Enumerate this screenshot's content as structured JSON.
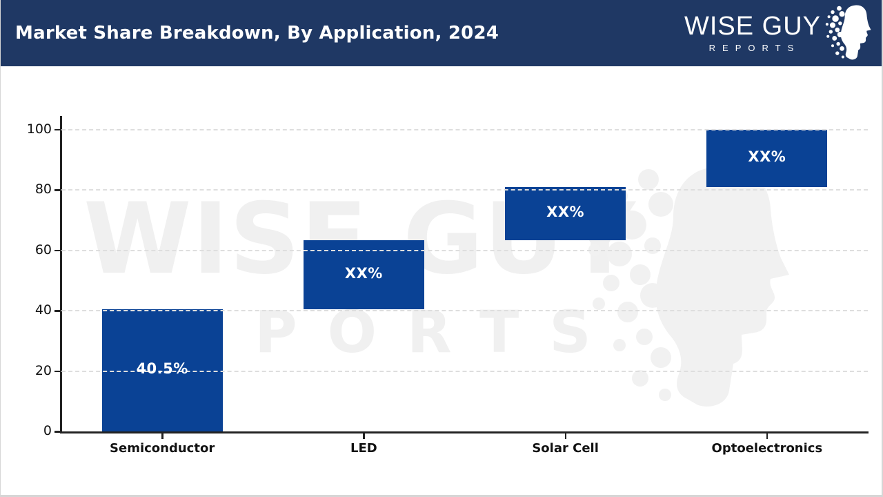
{
  "header": {
    "title": "Market Share Breakdown, By Application, 2024",
    "logo": {
      "line1": "WISE GUY",
      "line2": "REPORTS"
    }
  },
  "watermark": {
    "line1": "WISE GUY",
    "line2": "REPORTS"
  },
  "colors": {
    "header_bg": "#1f3864",
    "bar": "#0a4295",
    "bar_label": "#ffffff",
    "axis": "#222222",
    "gridline": "#dedede",
    "watermark": "#f0f0f0",
    "tick_text": "#111111",
    "page_border": "#d6d6d6"
  },
  "chart_data": {
    "type": "bar",
    "variant": "waterfall",
    "title": "Market Share Breakdown, By Application, 2024",
    "categories": [
      "Semiconductor",
      "LED",
      "Solar Cell",
      "Optoelectronics"
    ],
    "segments": [
      {
        "category": "Semiconductor",
        "start": 0,
        "end": 40.5,
        "label": "40.5%"
      },
      {
        "category": "LED",
        "start": 40.5,
        "end": 63.4,
        "label": "XX%"
      },
      {
        "category": "Solar Cell",
        "start": 63.4,
        "end": 81.0,
        "label": "XX%"
      },
      {
        "category": "Optoelectronics",
        "start": 81.0,
        "end": 100.0,
        "label": "XX%"
      }
    ],
    "xlabel": "",
    "ylabel": "",
    "yticks": [
      0,
      20,
      40,
      60,
      80,
      100
    ],
    "ylim": [
      0,
      104.5
    ],
    "grid": "horizontal-dashed",
    "legend": "none"
  }
}
